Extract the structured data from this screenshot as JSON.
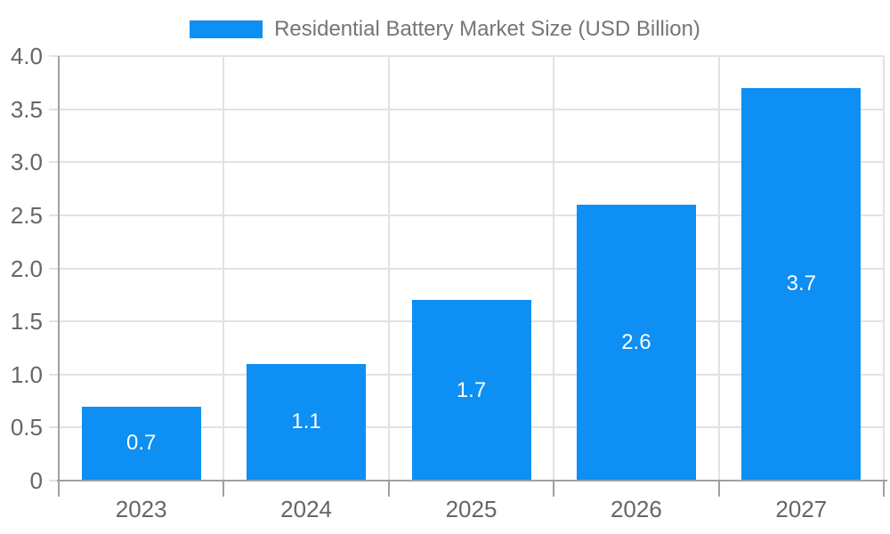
{
  "chart_data": {
    "type": "bar",
    "title": "Residential Battery Market Size (USD Billion)",
    "legend": [
      "Residential Battery Market Size (USD Billion)"
    ],
    "legend_position": "top-center",
    "categories": [
      "2023",
      "2024",
      "2025",
      "2026",
      "2027"
    ],
    "series": [
      {
        "name": "Residential Battery Market Size (USD Billion)",
        "values": [
          0.7,
          1.1,
          1.7,
          2.6,
          3.7
        ]
      }
    ],
    "bar_value_labels": [
      "0.7",
      "1.1",
      "1.7",
      "2.6",
      "3.7"
    ],
    "xlabel": "",
    "ylabel": "",
    "ylim": [
      0,
      4.0
    ],
    "ytick_step": 0.5,
    "ytick_labels": [
      "0",
      "0.5",
      "1.0",
      "1.5",
      "2.0",
      "2.5",
      "3.0",
      "3.5",
      "4.0"
    ],
    "grid": true,
    "colors": {
      "bar": "#0d8ff4",
      "grid": "#e2e2e2",
      "axis": "#a0a0a0",
      "tick_label": "#666666",
      "title": "#757575",
      "bar_label": "#ffffff",
      "background": "#ffffff"
    }
  }
}
